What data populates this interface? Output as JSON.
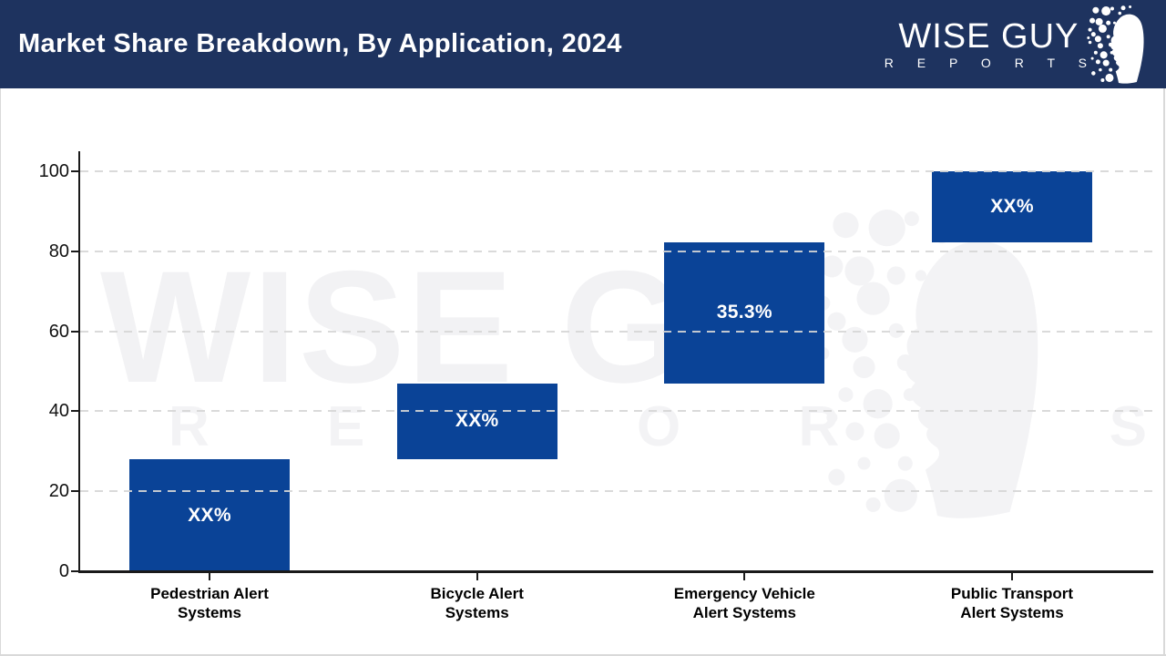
{
  "header": {
    "title": "Market Share Breakdown, By Application, 2024",
    "logo": {
      "name": "WISE GUY",
      "tagline": "R E P O R T S"
    }
  },
  "watermark": {
    "line1": "WISE GU",
    "line2": "R E P O R T S"
  },
  "chart_data": {
    "type": "bar",
    "subtype": "floating-segment-breakdown",
    "title": "Market Share Breakdown, By Application, 2024",
    "categories": [
      "Pedestrian Alert Systems",
      "Bicycle Alert Systems",
      "Emergency Vehicle Alert Systems",
      "Public Transport Alert Systems"
    ],
    "bars": [
      {
        "category": "Pedestrian Alert Systems",
        "label_lines": [
          "Pedestrian Alert",
          "Systems"
        ],
        "start": 0,
        "end": 28,
        "value_label": "XX%"
      },
      {
        "category": "Bicycle Alert Systems",
        "label_lines": [
          "Bicycle Alert",
          "Systems"
        ],
        "start": 28,
        "end": 47,
        "value_label": "XX%"
      },
      {
        "category": "Emergency Vehicle Alert Systems",
        "label_lines": [
          "Emergency Vehicle",
          "Alert Systems"
        ],
        "start": 47,
        "end": 82.3,
        "value": 35.3,
        "value_label": "35.3%"
      },
      {
        "category": "Public Transport Alert Systems",
        "label_lines": [
          "Public Transport",
          "Alert Systems"
        ],
        "start": 82.3,
        "end": 100,
        "value_label": "XX%"
      }
    ],
    "ylim": [
      0,
      100
    ],
    "yticks": [
      0,
      20,
      40,
      60,
      80,
      100
    ],
    "bar_color": "#0a4397",
    "grid": {
      "axis": "y",
      "style": "dashed",
      "color": "#d9d9d9"
    },
    "legend": "none",
    "colors": {
      "header_bg": "#1e335f",
      "axis": "#1a1a1a",
      "value_label_text": "#ffffff",
      "watermark": "#f2f2f4"
    }
  }
}
